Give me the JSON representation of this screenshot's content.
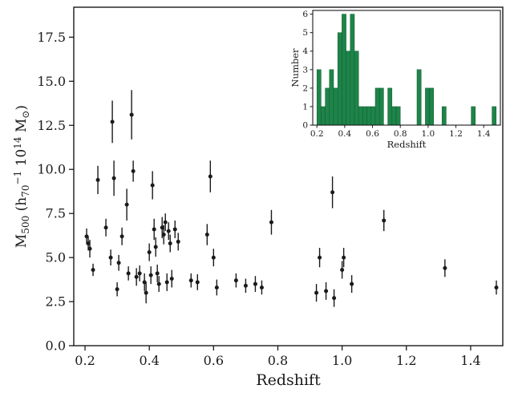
{
  "figure": {
    "background": "#ffffff",
    "axis_color": "#1a1a1a",
    "text_color": "#1a1a1a",
    "marker_color": "#1a1a1a"
  },
  "chart_data": [
    {
      "id": "main-scatter",
      "type": "scatter",
      "title": "",
      "xlabel": "Redshift",
      "ylabel_plain": "M500 (h70^-1 10^14 Msun)",
      "ylabel_parts": [
        {
          "t": "M"
        },
        {
          "t": "500",
          "sub": true
        },
        {
          "t": " (h"
        },
        {
          "t": "70",
          "sub": true
        },
        {
          "t": "−1",
          "sup": true
        },
        {
          "t": " 10"
        },
        {
          "t": "14",
          "sup": true
        },
        {
          "t": " M"
        },
        {
          "t": "⊙",
          "sub": true
        },
        {
          "t": ")"
        }
      ],
      "xlim": [
        0.165,
        1.5
      ],
      "ylim": [
        0,
        19.2
      ],
      "xticks": [
        "0.2",
        "0.4",
        "0.6",
        "0.8",
        "1.0",
        "1.2",
        "1.4"
      ],
      "yticks": [
        "0.0",
        "2.5",
        "5.0",
        "7.5",
        "10.0",
        "12.5",
        "15.0",
        "17.5"
      ],
      "grid": false,
      "points_format": "[redshift, m500, err]",
      "points": [
        [
          0.205,
          6.2,
          0.45
        ],
        [
          0.21,
          5.8,
          0.4
        ],
        [
          0.215,
          5.5,
          0.5
        ],
        [
          0.225,
          4.3,
          0.35
        ],
        [
          0.24,
          9.4,
          0.8
        ],
        [
          0.265,
          6.7,
          0.5
        ],
        [
          0.28,
          5.0,
          0.45
        ],
        [
          0.285,
          12.7,
          1.2
        ],
        [
          0.29,
          9.5,
          1.0
        ],
        [
          0.3,
          3.2,
          0.4
        ],
        [
          0.305,
          4.7,
          0.45
        ],
        [
          0.315,
          6.2,
          0.5
        ],
        [
          0.33,
          8.0,
          0.9
        ],
        [
          0.335,
          4.1,
          0.4
        ],
        [
          0.345,
          13.1,
          1.4
        ],
        [
          0.35,
          9.9,
          0.6
        ],
        [
          0.36,
          3.9,
          0.5
        ],
        [
          0.37,
          4.1,
          0.45
        ],
        [
          0.385,
          3.6,
          0.5
        ],
        [
          0.39,
          3.0,
          0.6
        ],
        [
          0.4,
          5.3,
          0.5
        ],
        [
          0.405,
          4.0,
          0.5
        ],
        [
          0.41,
          9.1,
          0.8
        ],
        [
          0.415,
          6.6,
          0.6
        ],
        [
          0.42,
          5.6,
          0.55
        ],
        [
          0.425,
          4.1,
          0.5
        ],
        [
          0.43,
          3.5,
          0.45
        ],
        [
          0.44,
          6.7,
          0.6
        ],
        [
          0.445,
          6.3,
          0.55
        ],
        [
          0.45,
          7.0,
          0.5
        ],
        [
          0.455,
          3.6,
          0.5
        ],
        [
          0.46,
          6.5,
          0.5
        ],
        [
          0.465,
          5.8,
          0.5
        ],
        [
          0.47,
          3.8,
          0.5
        ],
        [
          0.48,
          6.6,
          0.5
        ],
        [
          0.49,
          5.9,
          0.5
        ],
        [
          0.53,
          3.7,
          0.4
        ],
        [
          0.55,
          3.6,
          0.45
        ],
        [
          0.58,
          6.3,
          0.6
        ],
        [
          0.59,
          9.6,
          0.9
        ],
        [
          0.6,
          5.0,
          0.5
        ],
        [
          0.61,
          3.3,
          0.45
        ],
        [
          0.67,
          3.7,
          0.4
        ],
        [
          0.7,
          3.4,
          0.4
        ],
        [
          0.73,
          3.5,
          0.45
        ],
        [
          0.75,
          3.3,
          0.4
        ],
        [
          0.78,
          7.0,
          0.7
        ],
        [
          0.92,
          3.0,
          0.5
        ],
        [
          0.93,
          5.0,
          0.55
        ],
        [
          0.95,
          3.1,
          0.5
        ],
        [
          0.97,
          8.7,
          0.9
        ],
        [
          0.975,
          2.7,
          0.5
        ],
        [
          1.0,
          4.3,
          0.5
        ],
        [
          1.005,
          5.0,
          0.55
        ],
        [
          1.03,
          3.5,
          0.5
        ],
        [
          1.13,
          7.1,
          0.6
        ],
        [
          1.32,
          4.4,
          0.5
        ],
        [
          1.48,
          3.3,
          0.4
        ]
      ]
    },
    {
      "id": "inset-histogram",
      "type": "bar",
      "title": "",
      "xlabel": "Redshift",
      "ylabel": "Number",
      "bar_color": "#1e8449",
      "bar_edge_color": "#0e5c30",
      "bin_width": 0.03,
      "xlim": [
        0.17,
        1.52
      ],
      "ylim": [
        0,
        6.2
      ],
      "xticks": [
        "0.2",
        "0.4",
        "0.6",
        "0.8",
        "1.0",
        "1.2",
        "1.4"
      ],
      "yticks": [
        "0",
        "1",
        "2",
        "3",
        "4",
        "5",
        "6"
      ],
      "bins_format": "[bin_left_edge, count]",
      "bins": [
        [
          0.2,
          3
        ],
        [
          0.23,
          1
        ],
        [
          0.26,
          2
        ],
        [
          0.29,
          3
        ],
        [
          0.32,
          2
        ],
        [
          0.35,
          5
        ],
        [
          0.38,
          6
        ],
        [
          0.41,
          4
        ],
        [
          0.44,
          6
        ],
        [
          0.47,
          4
        ],
        [
          0.5,
          1
        ],
        [
          0.53,
          1
        ],
        [
          0.56,
          1
        ],
        [
          0.59,
          1
        ],
        [
          0.62,
          2
        ],
        [
          0.65,
          2
        ],
        [
          0.71,
          2
        ],
        [
          0.74,
          1
        ],
        [
          0.77,
          1
        ],
        [
          0.92,
          3
        ],
        [
          0.98,
          2
        ],
        [
          1.01,
          2
        ],
        [
          1.1,
          1
        ],
        [
          1.31,
          1
        ],
        [
          1.46,
          1
        ]
      ]
    }
  ]
}
